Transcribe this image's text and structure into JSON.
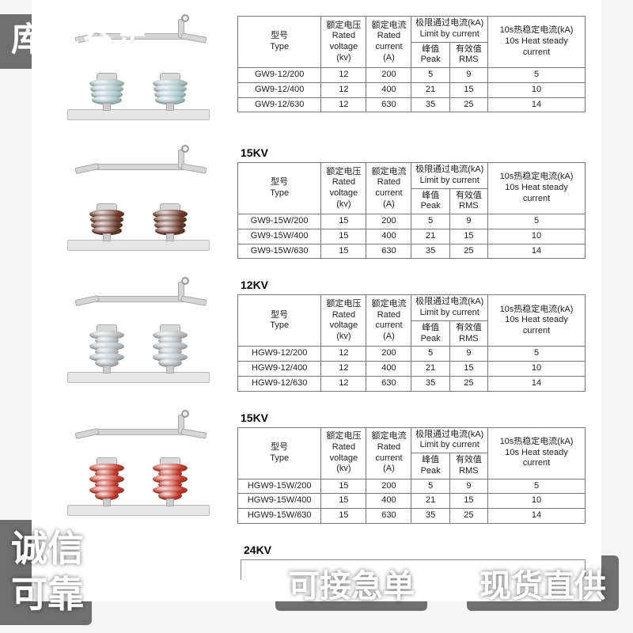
{
  "badges": {
    "top": "库存充足",
    "bottom_left": "诚信\n可靠",
    "bottom_right_a": "可接急单",
    "bottom_right_b": "现货直供"
  },
  "header_labels": {
    "type": "型号\nType",
    "voltage": "额定电压\nRated\nvoltage\n(kv)",
    "current": "额定电流\nRated\ncurrent\n(A)",
    "limit_group": "极限通过电流(kA)\nLimit by current",
    "peak": "峰值\nPeak",
    "rms": "有效值\nRMS",
    "heat": "10s热稳定电流(kA)\n10s Heat steady\ncurrent"
  },
  "sections": [
    {
      "title": "",
      "insulator_color": "#a9c3c6",
      "ribbed": false,
      "rows": [
        {
          "type": "GW9-12/200",
          "v": "12",
          "a": "200",
          "peak": "5",
          "rms": "9",
          "heat": "5"
        },
        {
          "type": "GW9-12/400",
          "v": "12",
          "a": "400",
          "peak": "21",
          "rms": "15",
          "heat": "10"
        },
        {
          "type": "GW9-12/630",
          "v": "12",
          "a": "630",
          "peak": "35",
          "rms": "25",
          "heat": "14"
        }
      ]
    },
    {
      "title": "15KV",
      "insulator_color": "#6a3a2a",
      "ribbed": false,
      "rows": [
        {
          "type": "GW9-15W/200",
          "v": "15",
          "a": "200",
          "peak": "5",
          "rms": "9",
          "heat": "5"
        },
        {
          "type": "GW9-15W/400",
          "v": "15",
          "a": "400",
          "peak": "21",
          "rms": "15",
          "heat": "10"
        },
        {
          "type": "GW9-15W/630",
          "v": "15",
          "a": "630",
          "peak": "35",
          "rms": "25",
          "heat": "14"
        }
      ]
    },
    {
      "title": "12KV",
      "insulator_color": "#b7bcc0",
      "ribbed": true,
      "rows": [
        {
          "type": "HGW9-12/200",
          "v": "12",
          "a": "200",
          "peak": "5",
          "rms": "9",
          "heat": "5"
        },
        {
          "type": "HGW9-12/400",
          "v": "12",
          "a": "400",
          "peak": "21",
          "rms": "15",
          "heat": "10"
        },
        {
          "type": "HGW9-12/630",
          "v": "12",
          "a": "630",
          "peak": "35",
          "rms": "25",
          "heat": "14"
        }
      ]
    },
    {
      "title": "15KV",
      "insulator_color": "#c23a2c",
      "ribbed": true,
      "rows": [
        {
          "type": "HGW9-15W/200",
          "v": "15",
          "a": "200",
          "peak": "5",
          "rms": "9",
          "heat": "5"
        },
        {
          "type": "HGW9-15W/400",
          "v": "15",
          "a": "400",
          "peak": "21",
          "rms": "15",
          "heat": "10"
        },
        {
          "type": "HGW9-15W/630",
          "v": "15",
          "a": "630",
          "peak": "35",
          "rms": "25",
          "heat": "14"
        }
      ]
    }
  ],
  "partial": {
    "title": "24KV"
  }
}
